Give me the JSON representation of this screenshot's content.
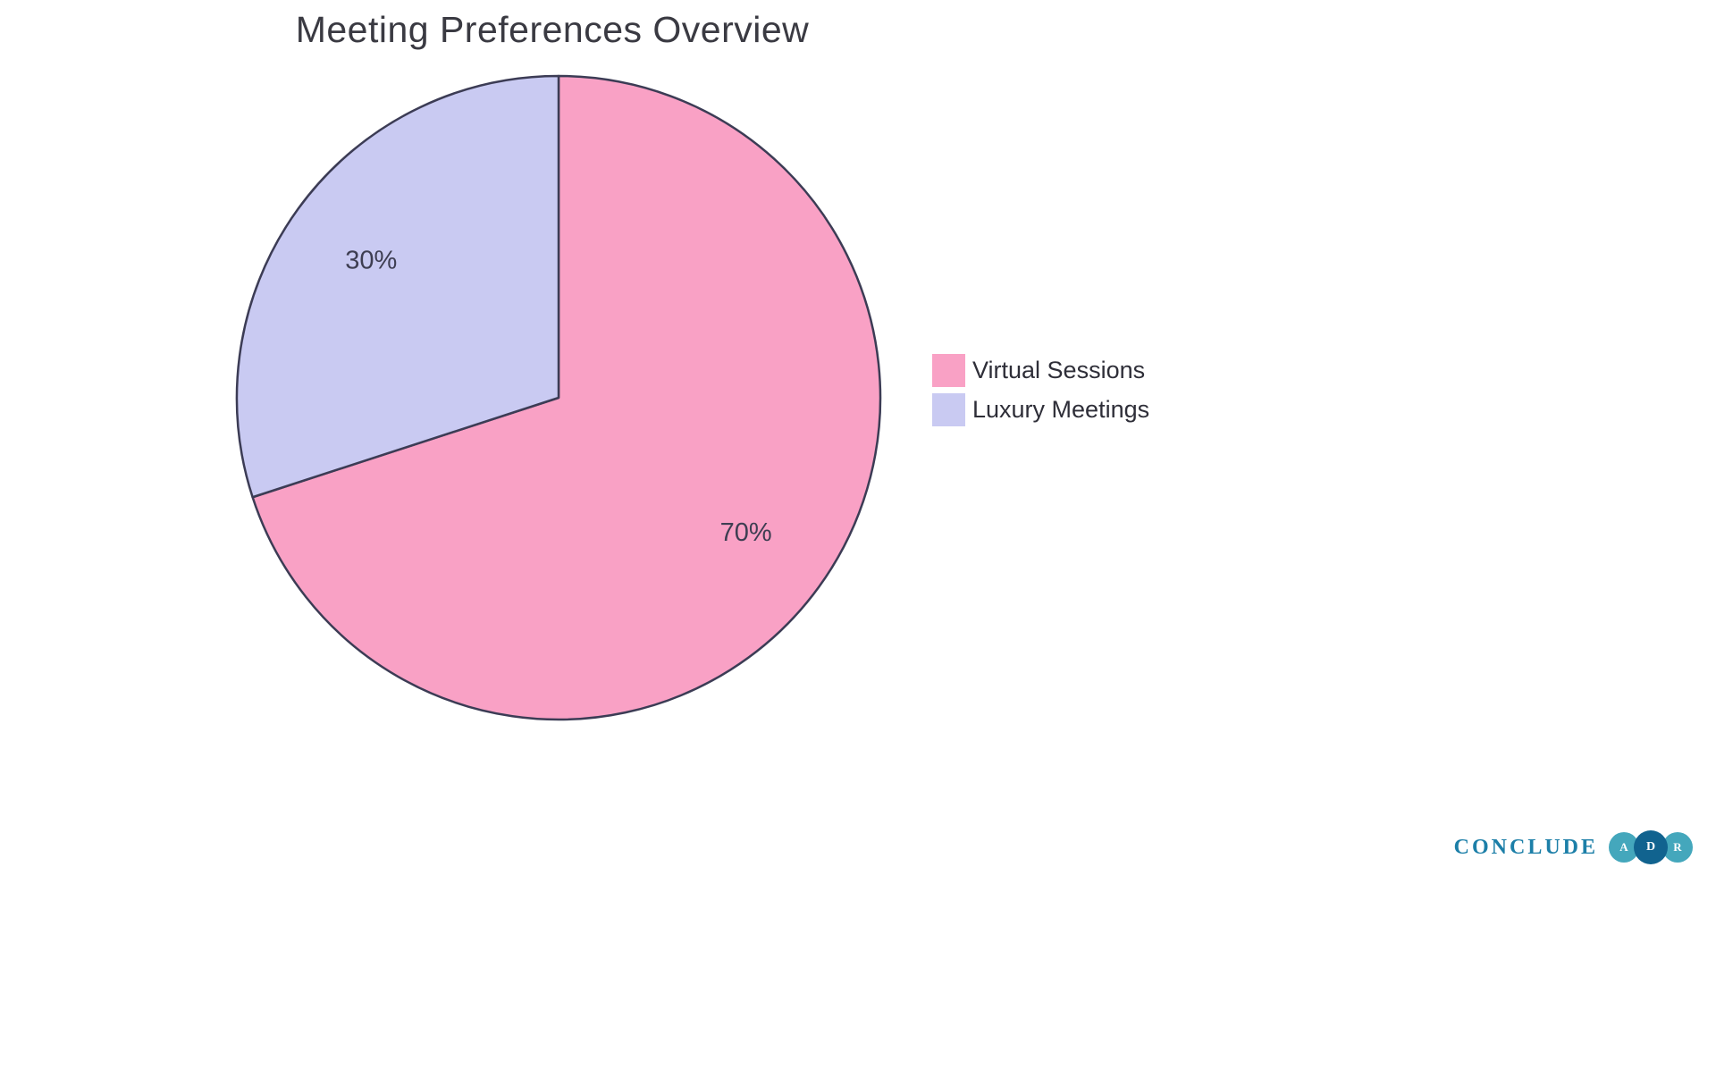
{
  "chart_data": {
    "type": "pie",
    "title": "Meeting Preferences Overview",
    "slices": [
      {
        "label": "Virtual Sessions",
        "value": 70,
        "display": "70%",
        "color": "#F9A1C5"
      },
      {
        "label": "Luxury Meetings",
        "value": 30,
        "display": "30%",
        "color": "#C9CAF2"
      }
    ],
    "start_angle_deg": 0,
    "direction": "clockwise",
    "stroke_color": "#3C3C55",
    "label_color": "#3E3E52",
    "legend_position": "right",
    "legend_entries": [
      "Virtual Sessions",
      "Luxury Meetings"
    ]
  },
  "branding": {
    "wordmark": "CONCLUDE",
    "wordmark_color": "#1C7FA8",
    "badges": [
      {
        "letter": "A",
        "color": "#44A7BC"
      },
      {
        "letter": "D",
        "color": "#11638F"
      },
      {
        "letter": "R",
        "color": "#44A7BC"
      }
    ]
  }
}
